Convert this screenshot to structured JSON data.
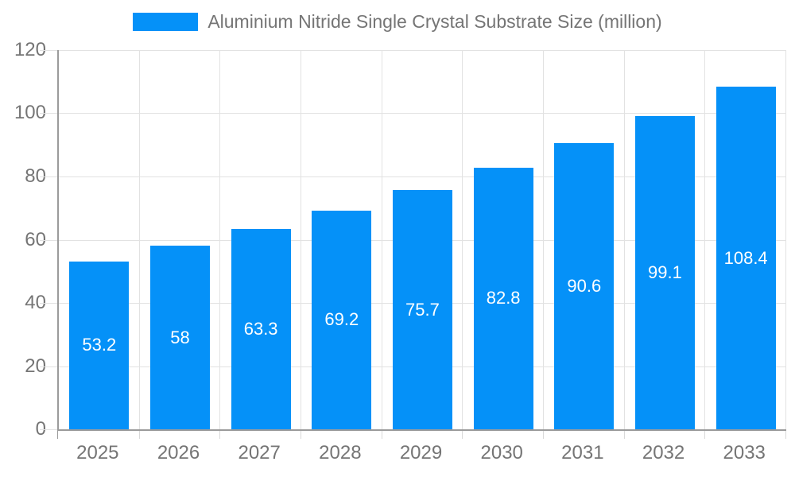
{
  "legend": {
    "label": "Aluminium Nitride Single Crystal Substrate Size (million)"
  },
  "chart_data": {
    "type": "bar",
    "title": "Aluminium Nitride Single Crystal Substrate Size (million)",
    "categories": [
      "2025",
      "2026",
      "2027",
      "2028",
      "2029",
      "2030",
      "2031",
      "2032",
      "2033"
    ],
    "values": [
      53.2,
      58,
      63.3,
      69.2,
      75.7,
      82.8,
      90.6,
      99.1,
      108.4
    ],
    "xlabel": "",
    "ylabel": "",
    "ylim": [
      0,
      120
    ],
    "yticks": [
      0,
      20,
      40,
      60,
      80,
      100,
      120
    ],
    "grid": true,
    "legend_position": "top",
    "value_labels_inside_bars": true,
    "colors": {
      "bar": "#0591f8",
      "grid": "#e2e2e2",
      "axis": "#9b9b9b",
      "tick": "#d9d9d9",
      "label_text": "#757575",
      "bar_value_text": "#ffffff",
      "background": "#ffffff"
    }
  }
}
